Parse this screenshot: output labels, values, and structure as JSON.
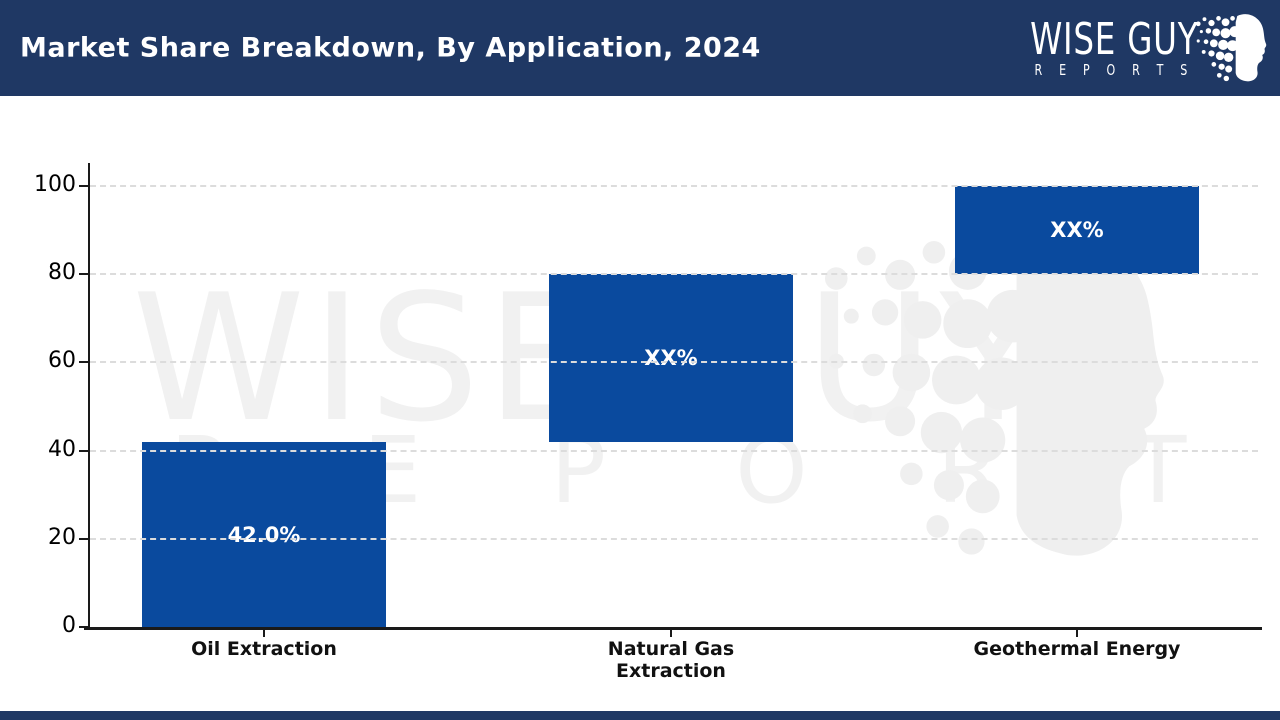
{
  "header": {
    "title": "Market Share Breakdown, By Application, 2024",
    "logo": {
      "line1": "WISE GUY",
      "line2": "R E P O R T S"
    }
  },
  "watermark": {
    "line1": "WISE GUY",
    "line2": "R E P O R T S"
  },
  "chart_data": {
    "type": "bar",
    "subtype": "waterfall",
    "title": "Market Share Breakdown, By Application, 2024",
    "categories": [
      "Oil Extraction",
      "Natural Gas Extraction",
      "Geothermal Energy"
    ],
    "category_lines": [
      [
        "Oil Extraction"
      ],
      [
        "Natural Gas",
        "Extraction"
      ],
      [
        "Geothermal Energy"
      ]
    ],
    "segments": [
      {
        "category": "Oil Extraction",
        "start": 0,
        "end": 42,
        "label": "42.0%"
      },
      {
        "category": "Natural Gas Extraction",
        "start": 42,
        "end": 80,
        "label": "XX%"
      },
      {
        "category": "Geothermal Energy",
        "start": 80,
        "end": 100,
        "label": "XX%"
      }
    ],
    "yticks": [
      0,
      20,
      40,
      60,
      80,
      100
    ],
    "ylim": [
      0,
      104
    ],
    "xlabel": "",
    "ylabel": "",
    "grid": "horizontal-dashed-over-bars",
    "legend": null,
    "colors": {
      "bar": "#0a4a9e",
      "bar_label": "#ffffff",
      "axis": "#1a1a1a",
      "gridline": "#dcdcdc",
      "header_bg": "#1f3864",
      "footer_bg": "#1f3864",
      "watermark": "#f1f1f1"
    }
  }
}
